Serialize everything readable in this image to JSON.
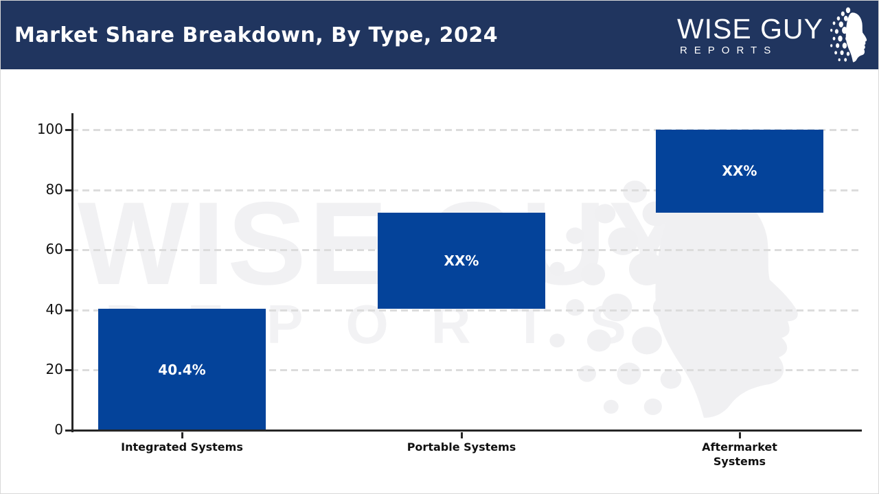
{
  "header": {
    "title": "Market Share Breakdown, By Type, 2024",
    "logo": {
      "line1": "WISE GUY",
      "line2": "REPORTS"
    }
  },
  "watermark": {
    "line1": "WISE GUY",
    "line2": "REPORTS"
  },
  "chart_data": {
    "type": "bar",
    "subtype": "waterfall",
    "title": "Market Share Breakdown, By Type, 2024",
    "categories": [
      "Integrated Systems",
      "Portable Systems",
      "Aftermarket\nSystems"
    ],
    "segments": [
      {
        "category": "Integrated Systems",
        "start": 0,
        "end": 40.4,
        "value_label": "40.4%"
      },
      {
        "category": "Portable Systems",
        "start": 40.4,
        "end": 72.4,
        "value_label": "XX%"
      },
      {
        "category": "Aftermarket Systems",
        "start": 72.4,
        "end": 100,
        "value_label": "XX%"
      }
    ],
    "ylabel": "",
    "xlabel": "",
    "ylim": [
      0,
      100
    ],
    "yticks": [
      0,
      20,
      40,
      60,
      80,
      100
    ],
    "grid": "horizontal-dashed",
    "legend": "none",
    "bar_color": "#04439a",
    "header_color": "#20355f",
    "axis_color": "#262626",
    "grid_color": "#dcdcdc",
    "watermark_color": "#f1f1f3"
  }
}
